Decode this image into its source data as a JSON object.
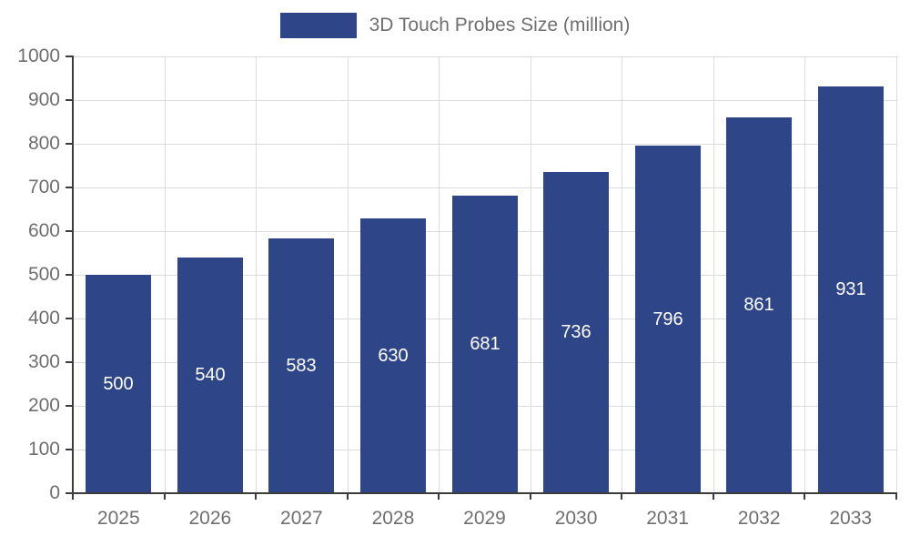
{
  "chart_data": {
    "type": "bar",
    "title": "3D Touch Probes Size (million)",
    "legend": "3D Touch Probes Size (million)",
    "categories": [
      "2025",
      "2026",
      "2027",
      "2028",
      "2029",
      "2030",
      "2031",
      "2032",
      "2033"
    ],
    "values": [
      500,
      540,
      583,
      630,
      681,
      736,
      796,
      861,
      931
    ],
    "xlabel": "",
    "ylabel": "",
    "ylim": [
      0,
      1000
    ],
    "ytick_step": 100,
    "grid": true,
    "legend_position": "top",
    "colors": {
      "bar": "#2e4688",
      "value_label": "#ffffff",
      "axis_label": "#6f6f6f",
      "gridline": "#dcdcdc",
      "axis_line": "#3c3c3c"
    }
  }
}
